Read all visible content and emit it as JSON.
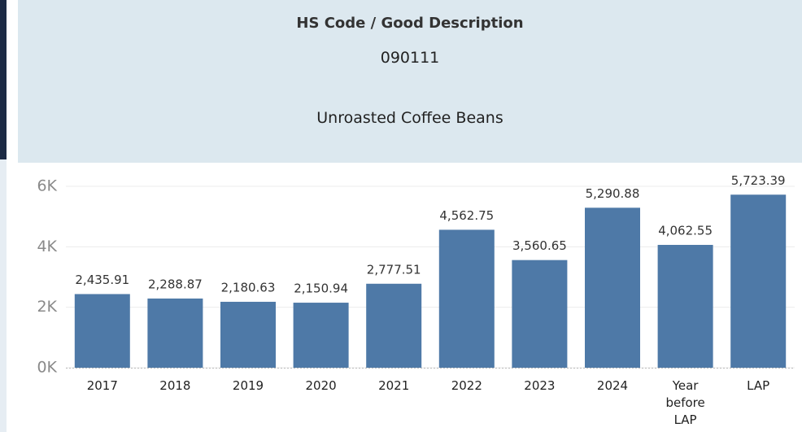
{
  "header": {
    "title": "HS Code / Good Description",
    "code": "090111",
    "description": "Unroasted Coffee Beans"
  },
  "chart_data": {
    "type": "bar",
    "categories": [
      "2017",
      "2018",
      "2019",
      "2020",
      "2021",
      "2022",
      "2023",
      "2024",
      "Year before LAP",
      "LAP"
    ],
    "values": [
      2435.91,
      2288.87,
      2180.63,
      2150.94,
      2777.51,
      4562.75,
      3560.65,
      5290.88,
      4062.55,
      5723.39
    ],
    "value_labels": [
      "2,435.91",
      "2,288.87",
      "2,180.63",
      "2,150.94",
      "2,777.51",
      "4,562.75",
      "3,560.65",
      "5,290.88",
      "4,062.55",
      "5,723.39"
    ],
    "color": "#4e79a7",
    "ylim": [
      0,
      6000
    ],
    "yticks": [
      {
        "value": 0,
        "label": "0K"
      },
      {
        "value": 2000,
        "label": "2K"
      },
      {
        "value": 4000,
        "label": "4K"
      },
      {
        "value": 6000,
        "label": "6K"
      }
    ],
    "grid": true
  }
}
